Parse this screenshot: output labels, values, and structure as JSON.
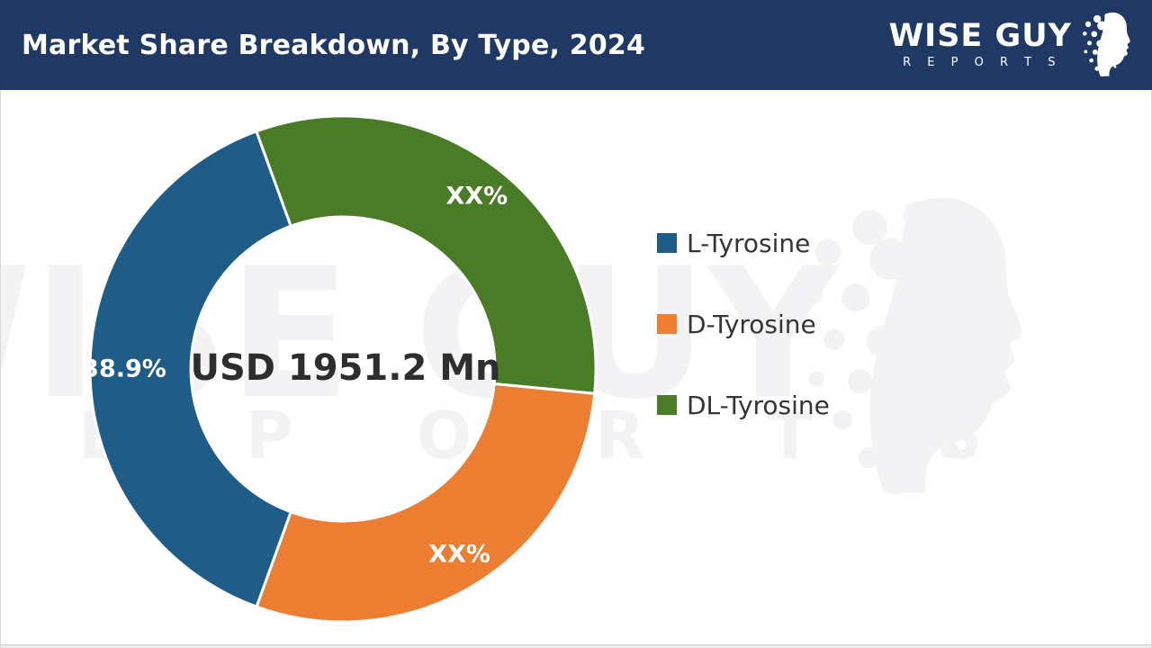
{
  "header": {
    "title": "Market Share Breakdown, By Type, 2024",
    "logo": {
      "line1": "WISE GUY",
      "line2": "R E P O R T S"
    }
  },
  "chart_data": {
    "type": "pie",
    "subtype": "donut",
    "title": "Market Share Breakdown, By Type, 2024",
    "center_label": "USD 1951.2 Mn",
    "start_angle_deg": 110,
    "direction": "counterclockwise",
    "legend_position": "right",
    "series": [
      {
        "name": "L-Tyrosine",
        "value_pct": 38.9,
        "displayed_label": "38.9%",
        "color": "#1F5C87"
      },
      {
        "name": "D-Tyrosine",
        "value_pct": 29.0,
        "displayed_label": "XX%",
        "color": "#ED7D31"
      },
      {
        "name": "DL-Tyrosine",
        "value_pct": 32.1,
        "displayed_label": "XX%",
        "color": "#4A7C28"
      }
    ]
  },
  "watermark": {
    "line1": "WISE GUY",
    "line2": "REPORTS"
  },
  "colors": {
    "header_bg": "#1F3864",
    "chart_bg": "#FFFFFF",
    "center_text": "#2E2E2E",
    "legend_text": "#353535",
    "slice_label_text": "#FFFFFF",
    "slice_edge": "#FFFFFF",
    "watermark": "#F3F3F5",
    "border": "#CCCCCC"
  }
}
